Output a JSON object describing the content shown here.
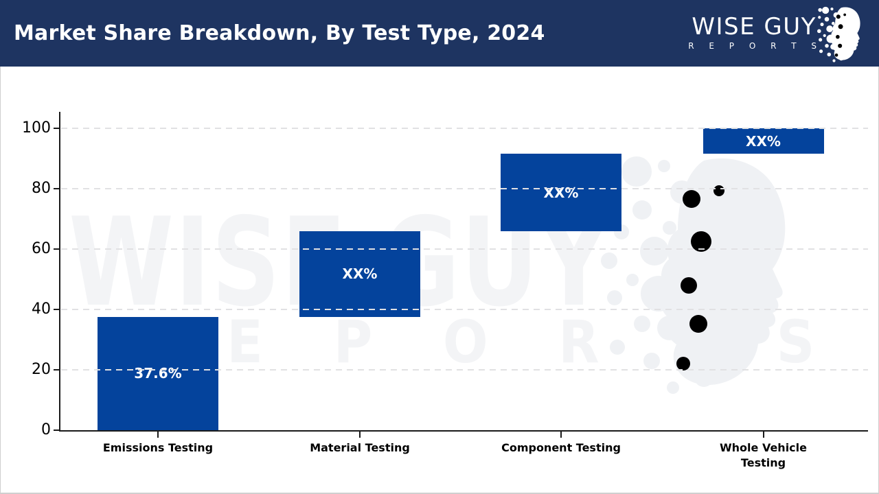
{
  "header": {
    "title": "Market Share Breakdown, By Test Type, 2024",
    "background_color": "#1e3461",
    "logo": {
      "brand": "WISE GUY",
      "sub": "R E P O R T S"
    }
  },
  "watermark": {
    "brand": "WISE GUY",
    "sub": "R E P O R T S"
  },
  "chart_data": {
    "type": "bar",
    "subtype": "waterfall",
    "title": "Market Share Breakdown, By Test Type, 2024",
    "categories": [
      "Emissions Testing",
      "Material Testing",
      "Component Testing",
      "Whole Vehicle Testing"
    ],
    "bars": [
      {
        "category": "Emissions Testing",
        "start": 0,
        "end": 37.6,
        "label": "37.6%"
      },
      {
        "category": "Material Testing",
        "start": 37.6,
        "end": 65.9,
        "label": "XX%"
      },
      {
        "category": "Component Testing",
        "start": 65.9,
        "end": 91.5,
        "label": "XX%"
      },
      {
        "category": "Whole Vehicle Testing",
        "start": 91.5,
        "end": 100,
        "label": "XX%"
      }
    ],
    "yticks": [
      0,
      20,
      40,
      60,
      80,
      100
    ],
    "ylim": [
      0,
      105
    ],
    "xlabel": "",
    "ylabel": "",
    "grid": "dashed-horizontal-above-bars",
    "legend": "none",
    "bar_color": "#04439c",
    "bar_label_color": "#ffffff",
    "axis_color": "#1a1a1a",
    "gridline_color": "#e1e1e3"
  }
}
